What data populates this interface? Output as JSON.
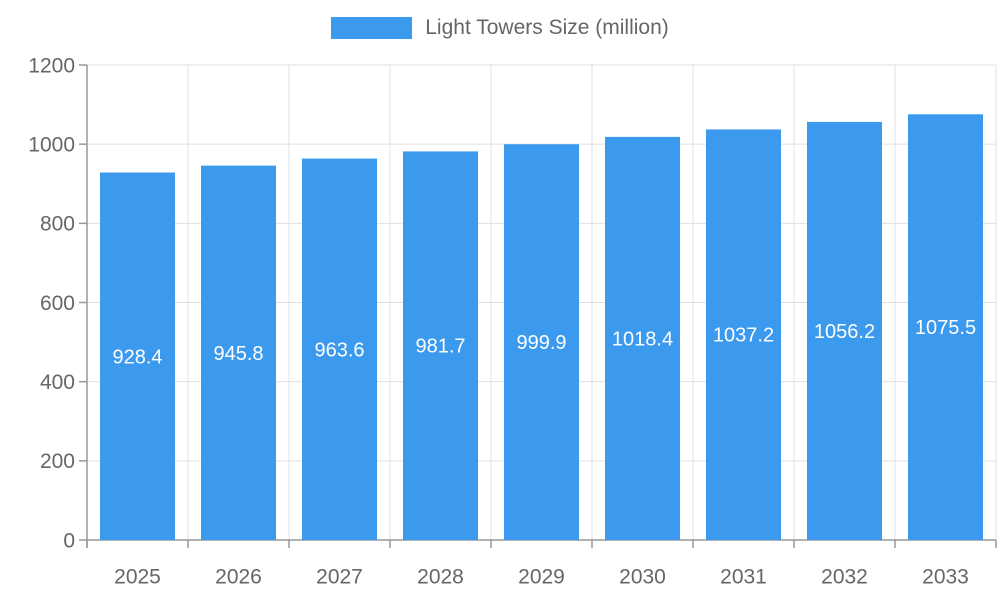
{
  "chart_data": {
    "type": "bar",
    "title": "",
    "legend": "Light Towers Size (million)",
    "categories": [
      "2025",
      "2026",
      "2027",
      "2028",
      "2029",
      "2030",
      "2031",
      "2032",
      "2033"
    ],
    "values": [
      928.4,
      945.8,
      963.6,
      981.7,
      999.9,
      1018.4,
      1037.2,
      1056.2,
      1075.5
    ],
    "ylim": [
      0,
      1200
    ],
    "yticks": [
      0,
      200,
      400,
      600,
      800,
      1000,
      1200
    ],
    "grid": true,
    "legend_position": "top-center",
    "colors": {
      "bar": "#3b99ee",
      "value_label": "#ffffff",
      "axis_text": "#666666",
      "axis_line": "#999999",
      "gridline": "#e0e0e0",
      "background": "#ffffff"
    }
  }
}
